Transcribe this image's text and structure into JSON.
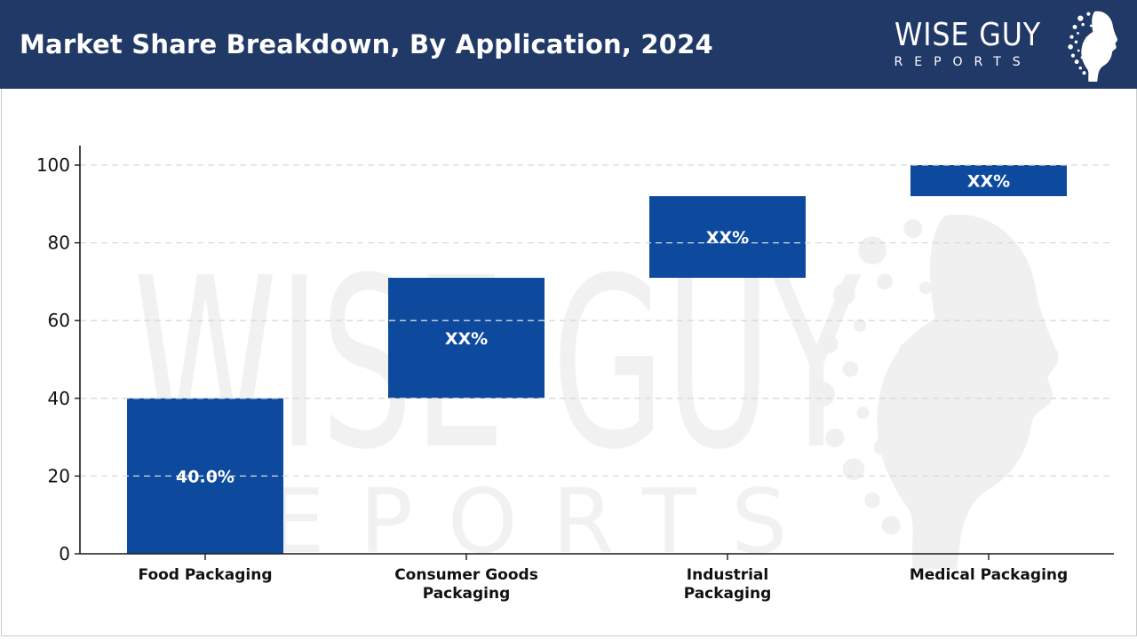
{
  "header": {
    "title": "Market Share Breakdown, By Application, 2024",
    "logo": {
      "line1": "WISE GUY",
      "line2": "REPORTS"
    }
  },
  "watermark": {
    "line1": "WISE GUY",
    "line2": "REPORTS"
  },
  "colors": {
    "header_bg": "#213966",
    "bar": "#0d4a9e",
    "grid": "#d9d9d9",
    "axis": "#1a1a1a",
    "bar_label": "#ffffff",
    "watermark": "#f1f1f1"
  },
  "chart_data": {
    "type": "bar",
    "subtype": "floating-waterfall",
    "title": "Market Share Breakdown, By Application, 2024",
    "xlabel": "",
    "ylabel": "",
    "ylim": [
      0,
      105
    ],
    "yticks": [
      0,
      20,
      40,
      60,
      80,
      100
    ],
    "grid": "horizontal-dashed",
    "legend": "none",
    "categories": [
      "Food Packaging",
      "Consumer Goods Packaging",
      "Industrial Packaging",
      "Medical Packaging"
    ],
    "bars": [
      {
        "category": "Food Packaging",
        "category_lines": [
          "Food Packaging"
        ],
        "start": 0,
        "end": 40,
        "label": "40.0%"
      },
      {
        "category": "Consumer Goods Packaging",
        "category_lines": [
          "Consumer Goods",
          "Packaging"
        ],
        "start": 40,
        "end": 71,
        "label": "XX%"
      },
      {
        "category": "Industrial Packaging",
        "category_lines": [
          "Industrial",
          "Packaging"
        ],
        "start": 71,
        "end": 92,
        "label": "XX%"
      },
      {
        "category": "Medical Packaging",
        "category_lines": [
          "Medical Packaging"
        ],
        "start": 92,
        "end": 100,
        "label": "XX%"
      }
    ]
  }
}
